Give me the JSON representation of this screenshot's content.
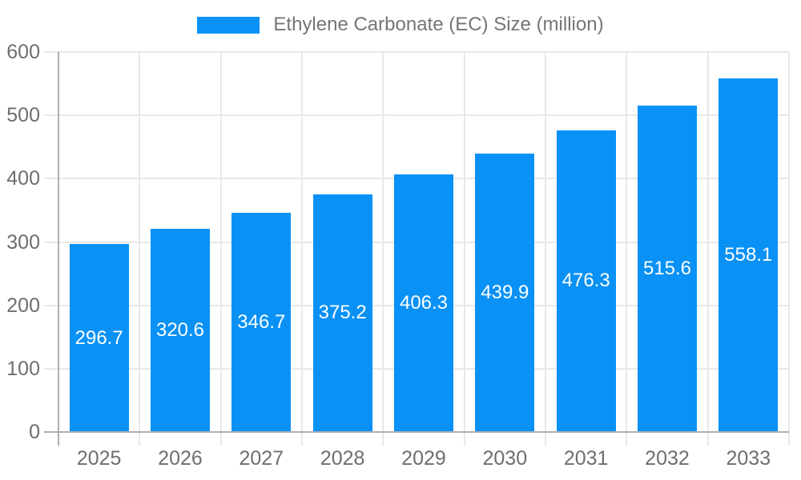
{
  "legend": {
    "label": "Ethylene Carbonate (EC) Size (million)"
  },
  "chart_data": {
    "type": "bar",
    "title": "Ethylene Carbonate (EC) Size (million)",
    "categories": [
      "2025",
      "2026",
      "2027",
      "2028",
      "2029",
      "2030",
      "2031",
      "2032",
      "2033"
    ],
    "values": [
      296.7,
      320.6,
      346.7,
      375.2,
      406.3,
      439.9,
      476.3,
      515.6,
      558.1
    ],
    "series": [
      {
        "name": "Ethylene Carbonate (EC) Size (million)",
        "values": [
          296.7,
          320.6,
          346.7,
          375.2,
          406.3,
          439.9,
          476.3,
          515.6,
          558.1
        ]
      }
    ],
    "xlabel": "",
    "ylabel": "",
    "ylim": [
      0,
      600
    ],
    "yticks": [
      0,
      100,
      200,
      300,
      400,
      500,
      600
    ],
    "grid": true,
    "legend_position": "top-center",
    "value_labels": "inside-center",
    "colors": {
      "bar": "#0991f5",
      "axis_line": "#b0b0b0",
      "grid_line": "#e8e8e8",
      "tick_label": "#6e6e6e",
      "legend_label": "#757575",
      "value_label": "#ffffff",
      "background": "#ffffff"
    }
  }
}
